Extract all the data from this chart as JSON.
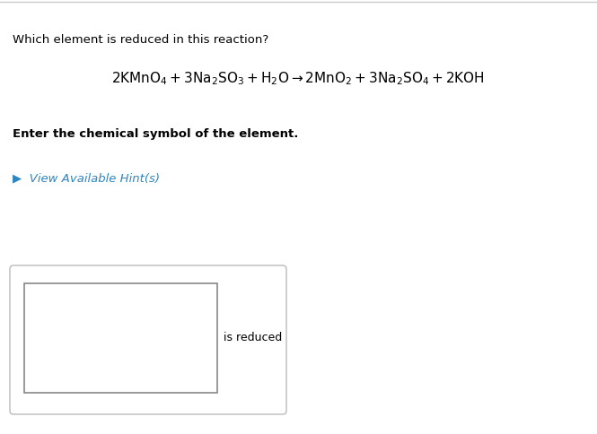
{
  "question_text": "Which element is reduced in this reaction?",
  "bold_instruction": "Enter the chemical symbol of the element.",
  "hint_text": "▶  View Available Hint(s)",
  "is_reduced_label": "is reduced",
  "bg_color": "#ffffff",
  "text_color": "#000000",
  "hint_color": "#2e86c1",
  "question_fontsize": 9.5,
  "equation_fontsize": 11,
  "instruction_fontsize": 9.5,
  "hint_fontsize": 9.5,
  "label_fontsize": 9,
  "top_border_color": "#cccccc"
}
